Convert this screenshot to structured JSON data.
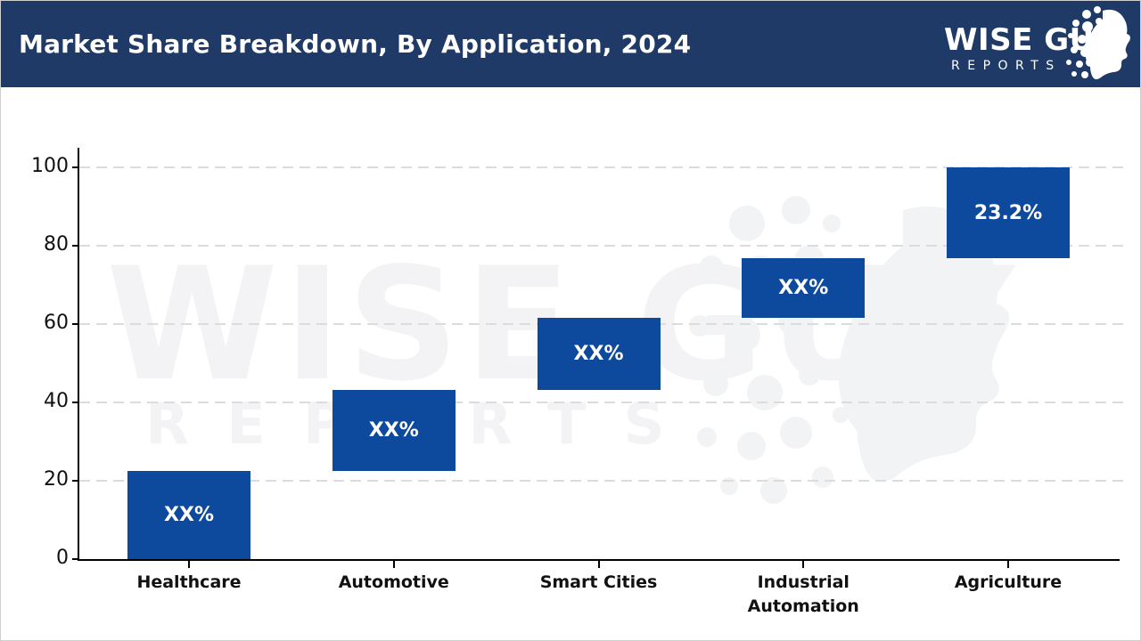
{
  "header": {
    "title": "Market Share Breakdown, By Application, 2024",
    "logo_line1": "WISE GUY",
    "logo_line2": "REPORTS",
    "bg_color": "#1f3a66",
    "text_color": "#ffffff"
  },
  "watermark": {
    "line1": "WISE GUY",
    "line2": "REPORTS"
  },
  "chart_data": {
    "type": "bar",
    "subtype": "waterfall",
    "title": "Market Share Breakdown, By Application, 2024",
    "categories": [
      "Healthcare",
      "Automotive",
      "Smart Cities",
      "Industrial Automation",
      "Agriculture"
    ],
    "segments": [
      {
        "category": "Healthcare",
        "start": 0,
        "end": 22.5,
        "label": "XX%"
      },
      {
        "category": "Automotive",
        "start": 22.5,
        "end": 43.1,
        "label": "XX%"
      },
      {
        "category": "Smart Cities",
        "start": 43.1,
        "end": 61.5,
        "label": "XX%"
      },
      {
        "category": "Industrial Automation",
        "start": 61.5,
        "end": 76.8,
        "label": "XX%"
      },
      {
        "category": "Agriculture",
        "start": 76.8,
        "end": 100,
        "label": "23.2%"
      }
    ],
    "y_ticks": [
      0,
      20,
      40,
      60,
      80,
      100
    ],
    "ylim": [
      0,
      105
    ],
    "xlabel": "",
    "ylabel": "",
    "legend": "none",
    "grid": "horizontal-dashed",
    "colors": {
      "bar": "#0d4a9e",
      "bar_label": "#ffffff",
      "grid": "#dcdcdc",
      "axis": "#000000",
      "tick_label": "#111111",
      "watermark": "#f3f3f5"
    }
  }
}
